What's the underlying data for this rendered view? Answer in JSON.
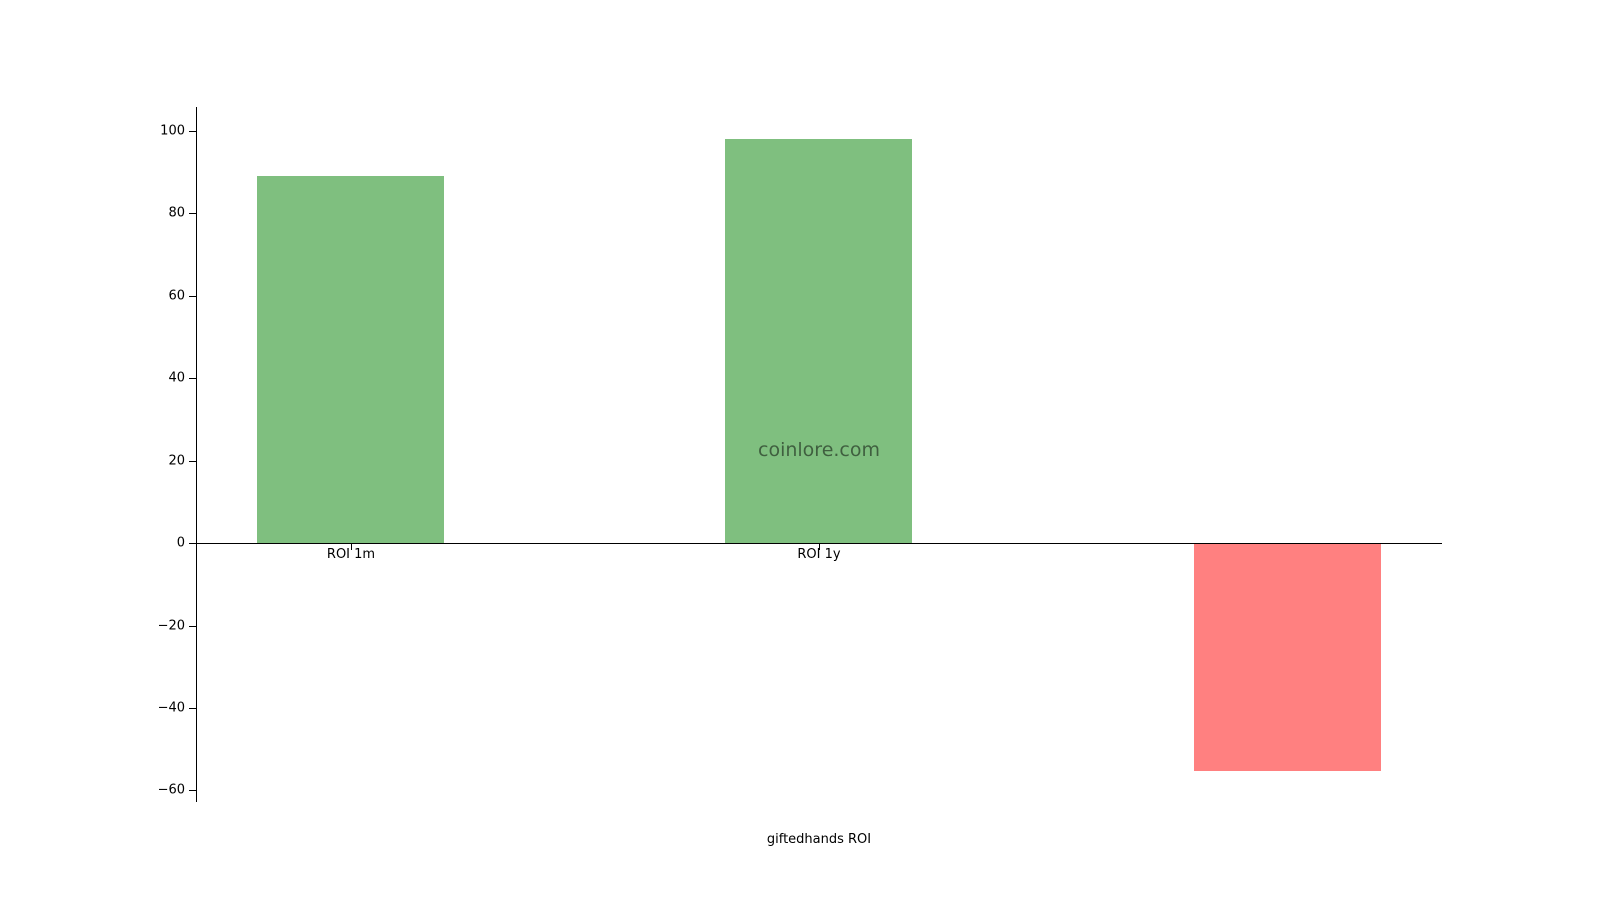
{
  "chart_data": {
    "type": "bar",
    "title": "",
    "xlabel": "giftedhands ROI",
    "ylabel": "",
    "categories": [
      "ROI 1m",
      "ROI 1y",
      ""
    ],
    "values": [
      89,
      98,
      -55
    ],
    "bar_colors": [
      "#7fbf7f",
      "#7fbf7f",
      "#ff8080"
    ],
    "yticks": [
      100,
      80,
      60,
      40,
      20,
      0,
      -20,
      -40,
      -60
    ],
    "ylim": [
      -62.8,
      105.8
    ],
    "xlim": [
      -0.33,
      2.33
    ],
    "bar_width_units": 0.4,
    "grid": false,
    "legend": null,
    "axis_color": "#000000"
  },
  "watermark": {
    "text": "coinlore.com",
    "color": "rgba(0, 0, 0, 0.5)"
  }
}
